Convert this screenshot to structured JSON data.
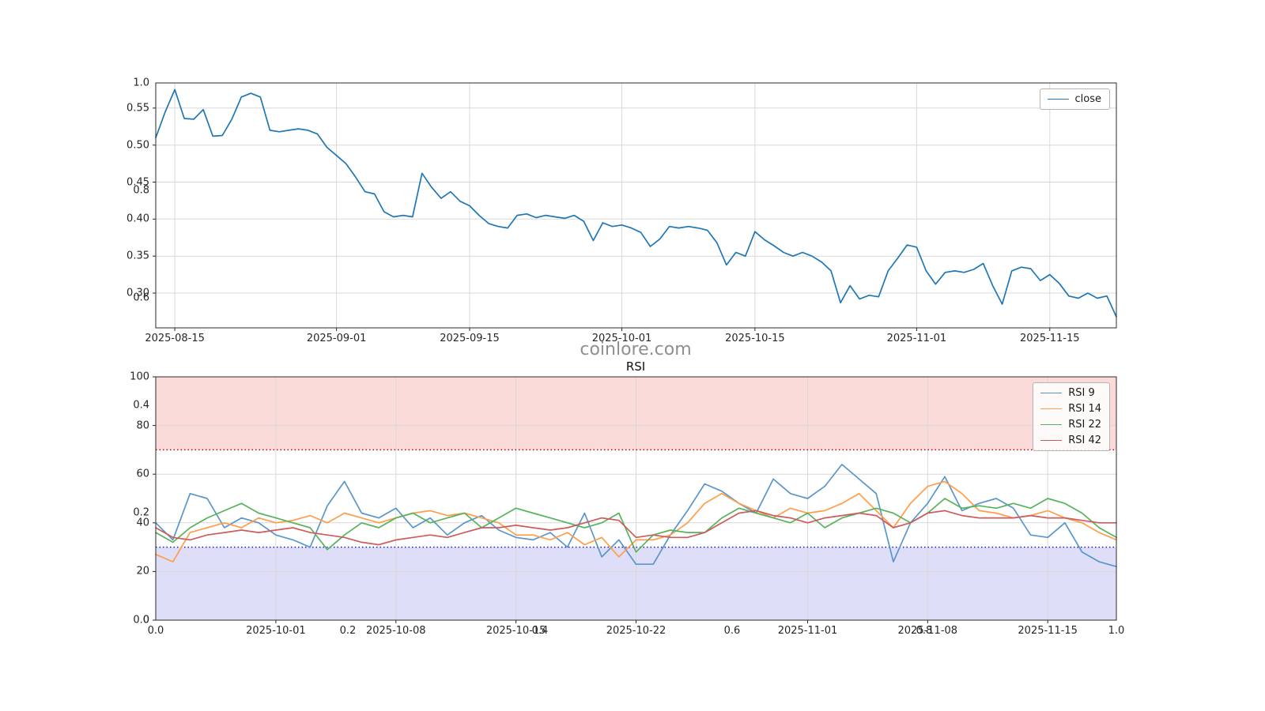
{
  "watermark": "coinlore.com",
  "overlay_axis": {
    "ytick_labels": [
      "1.0",
      "0.8",
      "0.6",
      "0.4",
      "0.2",
      "0.0"
    ],
    "xtick_labels": [
      "0.0",
      "0.2",
      "0.4",
      "0.6",
      "0.8",
      "1.0"
    ]
  },
  "chart_data": [
    {
      "type": "line",
      "title": "",
      "legend": [
        "close"
      ],
      "legend_position": "upper right",
      "grid": true,
      "ylim": [
        0.253,
        0.584
      ],
      "yticks": [
        0.3,
        0.35,
        0.4,
        0.45,
        0.5,
        0.55
      ],
      "ytick_labels": [
        "0.30",
        "0.35",
        "0.40",
        "0.45",
        "0.50",
        "0.55"
      ],
      "xtick_dates": [
        "2025-08-15",
        "2025-09-01",
        "2025-09-15",
        "2025-10-01",
        "2025-10-15",
        "2025-11-01",
        "2025-11-15"
      ],
      "series": [
        {
          "name": "close",
          "color": "#1f77b4",
          "start_date": "2025-08-13",
          "interval_days": 1,
          "values": [
            0.51,
            0.545,
            0.575,
            0.536,
            0.535,
            0.548,
            0.512,
            0.513,
            0.535,
            0.565,
            0.57,
            0.565,
            0.52,
            0.518,
            0.52,
            0.522,
            0.52,
            0.515,
            0.497,
            0.486,
            0.475,
            0.457,
            0.437,
            0.434,
            0.41,
            0.403,
            0.405,
            0.403,
            0.462,
            0.443,
            0.428,
            0.437,
            0.424,
            0.418,
            0.405,
            0.394,
            0.39,
            0.388,
            0.405,
            0.407,
            0.402,
            0.405,
            0.403,
            0.401,
            0.405,
            0.397,
            0.371,
            0.395,
            0.39,
            0.392,
            0.388,
            0.382,
            0.363,
            0.373,
            0.39,
            0.388,
            0.39,
            0.388,
            0.385,
            0.368,
            0.338,
            0.355,
            0.35,
            0.383,
            0.372,
            0.364,
            0.355,
            0.35,
            0.355,
            0.35,
            0.342,
            0.33,
            0.287,
            0.31,
            0.292,
            0.297,
            0.295,
            0.33,
            0.347,
            0.365,
            0.362,
            0.33,
            0.312,
            0.328,
            0.33,
            0.328,
            0.332,
            0.34,
            0.31,
            0.285,
            0.33,
            0.335,
            0.333,
            0.317,
            0.325,
            0.313,
            0.296,
            0.293,
            0.3,
            0.293,
            0.296,
            0.268
          ]
        }
      ]
    },
    {
      "type": "line",
      "title": "RSI",
      "legend": [
        "RSI 9",
        "RSI 14",
        "RSI 22",
        "RSI 42"
      ],
      "legend_position": "upper right",
      "grid": true,
      "ylim": [
        0,
        100
      ],
      "yticks": [
        0,
        20,
        40,
        60,
        80,
        100
      ],
      "ytick_labels": [
        "0",
        "20",
        "40",
        "60",
        "80",
        "100"
      ],
      "xtick_dates": [
        "2025-10-01",
        "2025-10-08",
        "2025-10-15",
        "2025-10-22",
        "2025-11-01",
        "2025-11-08",
        "2025-11-15"
      ],
      "overbought": {
        "level": 70,
        "line_color": "#cc0000",
        "band_color": "#fbdada",
        "band_range": [
          70,
          100
        ]
      },
      "oversold": {
        "level": 30,
        "line_color": "#1a1acc",
        "band_color": "#dedef8",
        "band_range": [
          0,
          30
        ]
      },
      "series": [
        {
          "name": "RSI 9",
          "color": "#5a96cb",
          "start_date": "2025-09-24",
          "interval_days": 1,
          "values": [
            40,
            33,
            52,
            50,
            38,
            42,
            40,
            35,
            33,
            30,
            47,
            57,
            44,
            42,
            46,
            38,
            42,
            35,
            40,
            43,
            37,
            34,
            33,
            36,
            30,
            44,
            26,
            33,
            23,
            23,
            35,
            45,
            56,
            53,
            48,
            44,
            58,
            52,
            50,
            55,
            64,
            58,
            52,
            24,
            40,
            48,
            59,
            45,
            48,
            50,
            46,
            35,
            34,
            40,
            28,
            24,
            22
          ]
        },
        {
          "name": "RSI 14",
          "color": "#ff9e4a",
          "start_date": "2025-09-24",
          "interval_days": 1,
          "values": [
            27,
            24,
            36,
            38,
            40,
            38,
            42,
            40,
            41,
            43,
            40,
            44,
            42,
            40,
            42,
            44,
            45,
            43,
            44,
            42,
            40,
            35,
            35,
            33,
            36,
            31,
            34,
            26,
            33,
            33,
            35,
            40,
            48,
            52,
            48,
            45,
            42,
            46,
            44,
            45,
            48,
            52,
            45,
            38,
            48,
            55,
            57,
            52,
            45,
            44,
            42,
            43,
            45,
            42,
            40,
            36,
            33
          ]
        },
        {
          "name": "RSI 22",
          "color": "#57b35c",
          "start_date": "2025-09-24",
          "interval_days": 1,
          "values": [
            36,
            32,
            38,
            42,
            45,
            48,
            44,
            42,
            40,
            38,
            29,
            35,
            40,
            38,
            42,
            44,
            40,
            42,
            44,
            38,
            42,
            46,
            44,
            42,
            40,
            38,
            40,
            44,
            28,
            35,
            37,
            36,
            36,
            42,
            46,
            44,
            42,
            40,
            44,
            38,
            42,
            44,
            46,
            44,
            40,
            44,
            50,
            46,
            47,
            46,
            48,
            46,
            50,
            48,
            44,
            38,
            34
          ]
        },
        {
          "name": "RSI 42",
          "color": "#cd5c5c",
          "start_date": "2025-09-24",
          "interval_days": 1,
          "values": [
            38,
            34,
            33,
            35,
            36,
            37,
            36,
            37,
            38,
            36,
            35,
            34,
            32,
            31,
            33,
            34,
            35,
            34,
            36,
            38,
            38,
            39,
            38,
            37,
            38,
            40,
            42,
            41,
            34,
            35,
            34,
            34,
            36,
            40,
            44,
            45,
            43,
            42,
            40,
            42,
            43,
            44,
            43,
            38,
            40,
            44,
            45,
            43,
            42,
            42,
            42,
            43,
            42,
            42,
            41,
            40,
            40
          ]
        }
      ]
    }
  ]
}
